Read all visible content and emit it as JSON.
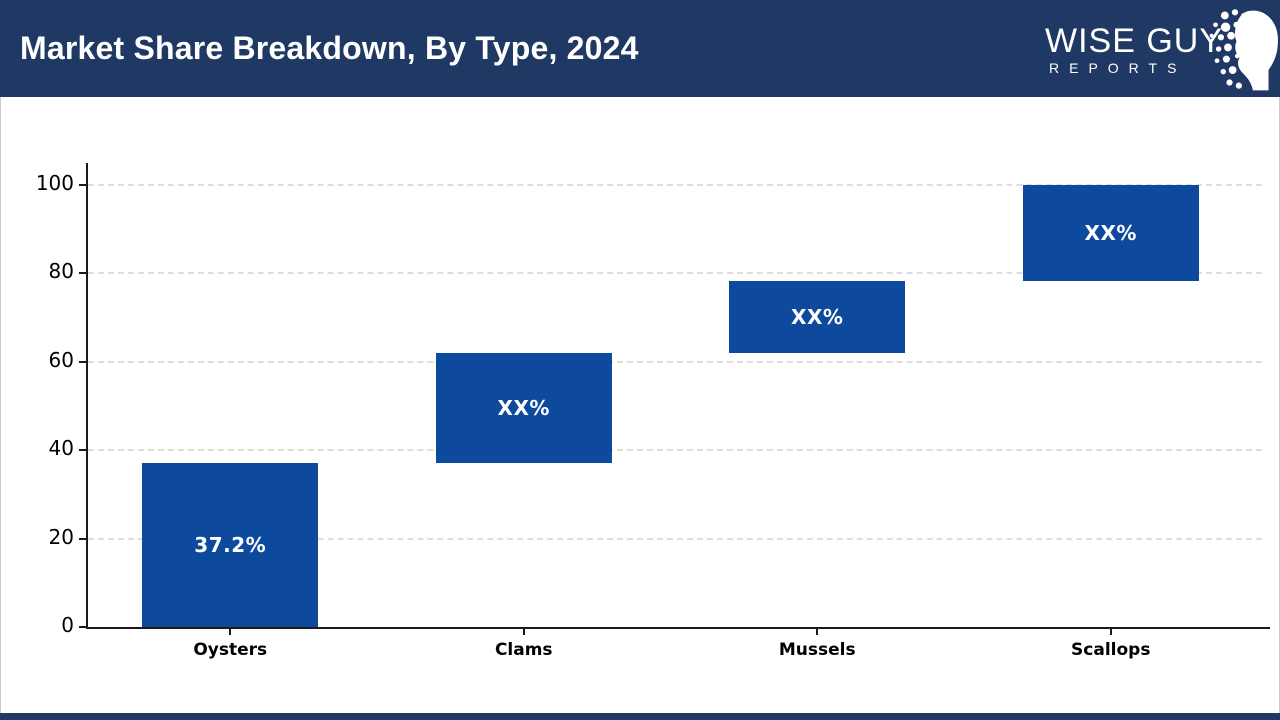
{
  "header": {
    "title": "Market Share Breakdown, By Type, 2024",
    "logo": {
      "line1": "WISE GUY",
      "line2": "REPORTS"
    }
  },
  "watermark": {
    "line1": "WISE GUY",
    "line2": "R E P O R T S"
  },
  "chart_data": {
    "type": "bar",
    "subtype": "waterfall (floating stepped segments)",
    "title": "Market Share Breakdown, By Type, 2024",
    "categories": [
      "Oysters",
      "Clams",
      "Mussels",
      "Scallops"
    ],
    "segments": [
      {
        "category": "Oysters",
        "start": 0,
        "end": 37.2,
        "label": "37.2%"
      },
      {
        "category": "Clams",
        "start": 37.2,
        "end": 62.0,
        "label": "XX%"
      },
      {
        "category": "Mussels",
        "start": 62.0,
        "end": 78.3,
        "label": "XX%"
      },
      {
        "category": "Scallops",
        "start": 78.3,
        "end": 100,
        "label": "XX%"
      }
    ],
    "xlabel": "",
    "ylabel": "",
    "ylim": [
      0,
      100
    ],
    "yticks": [
      0,
      20,
      40,
      60,
      80,
      100
    ],
    "grid": "horizontal dashed",
    "legend": "none",
    "bar_color": "#0d4a9e",
    "bar_label_color": "#ffffff"
  },
  "colors": {
    "header_bg": "#1f3864",
    "accent_blue": "#0d4a9e",
    "gridline": "#dddddd",
    "axis": "#1a1a1a",
    "watermark": "#f1f1f1"
  }
}
